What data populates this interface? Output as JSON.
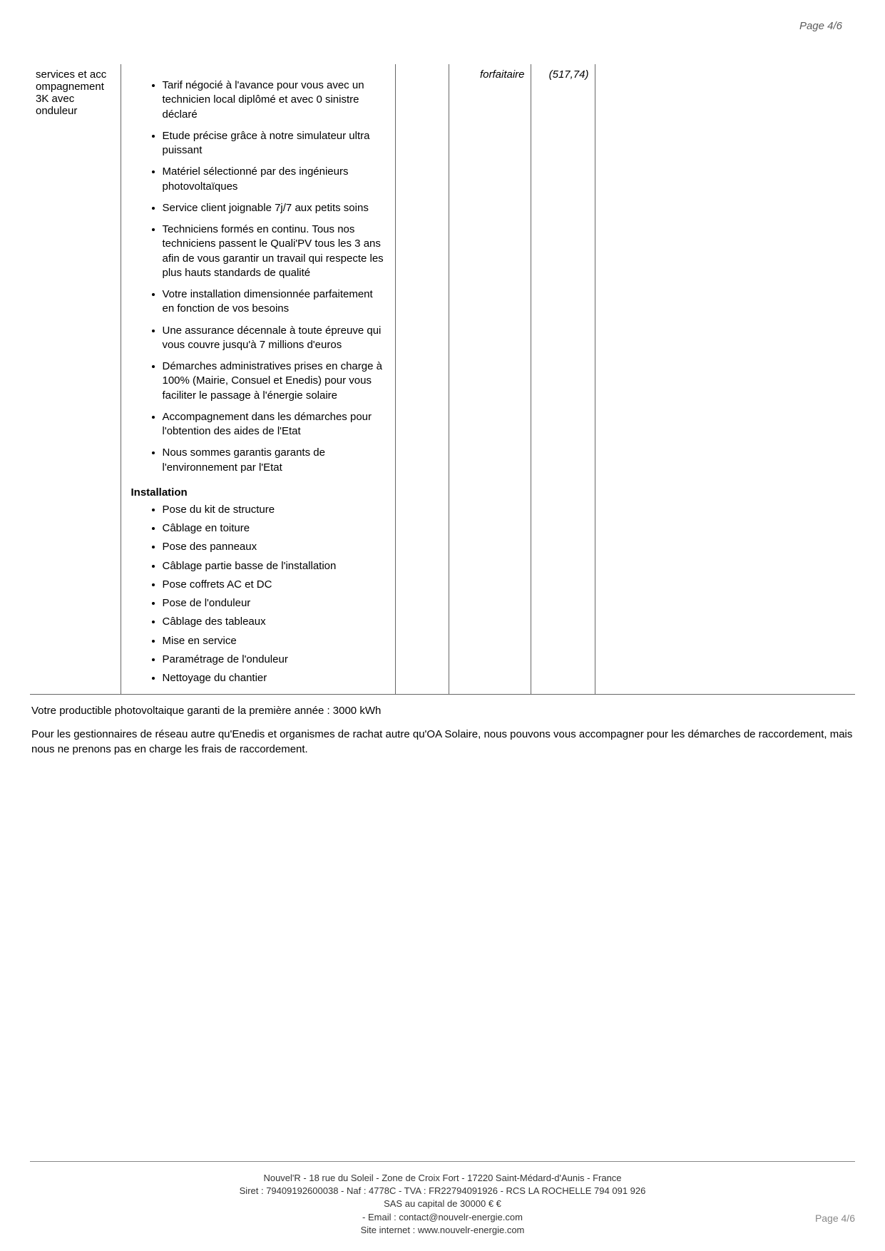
{
  "header": {
    "page_label": "Page 4/6"
  },
  "table": {
    "row_label": "services et acc ompagnement 3K avec onduleur",
    "unit": "forfaitaire",
    "price": "(517,74)",
    "bullets_main": [
      "Tarif négocié à l'avance pour vous avec un technicien local diplômé et avec 0 sinistre déclaré",
      "Etude précise grâce à notre simulateur ultra puissant",
      "Matériel sélectionné par des ingénieurs photovoltaïques",
      "Service client joignable 7j/7 aux petits soins",
      "Techniciens formés en continu. Tous nos techniciens passent le Quali'PV tous les 3 ans afin de vous garantir un travail qui respecte les plus hauts standards de qualité",
      "Votre installation dimensionnée parfaitement en fonction de vos besoins",
      "Une assurance décennale à toute épreuve qui vous couvre jusqu'à 7 millions d'euros",
      "Démarches administratives prises en charge à 100% (Mairie, Consuel et Enedis) pour vous faciliter le passage à l'énergie solaire",
      "Accompagnement dans les démarches pour l'obtention des aides de l'Etat",
      "Nous sommes garantis garants de l'environnement par l'Etat"
    ],
    "section2_title": "Installation",
    "bullets_install": [
      "Pose du kit de structure",
      "Câblage en toiture",
      "Pose des panneaux",
      "Câblage partie basse de l'installation",
      "Pose coffrets AC et DC",
      "Pose de l'onduleur",
      "Câblage des tableaux",
      "Mise en service",
      "Paramétrage de l'onduleur",
      "Nettoyage du chantier"
    ]
  },
  "notes": {
    "line1": "Votre productible photovoltaique garanti de la première année : 3000 kWh",
    "line2": "Pour les gestionnaires de réseau autre qu'Enedis et organismes de rachat autre qu'OA Solaire, nous pouvons vous accompagner pour les démarches de raccordement, mais nous ne prenons pas en charge les frais de raccordement."
  },
  "footer": {
    "line1": "Nouvel'R - 18 rue du Soleil - Zone de Croix Fort - 17220 Saint-Médard-d'Aunis - France",
    "line2": "Siret : 79409192600038 - Naf : 4778C - TVA : FR22794091926 - RCS LA ROCHELLE 794 091 926",
    "line3": "SAS au capital de 30000 € €",
    "line4": "- Email : contact@nouvelr-energie.com",
    "line5": "Site internet : www.nouvelr-energie.com",
    "page_label": "Page 4/6"
  }
}
